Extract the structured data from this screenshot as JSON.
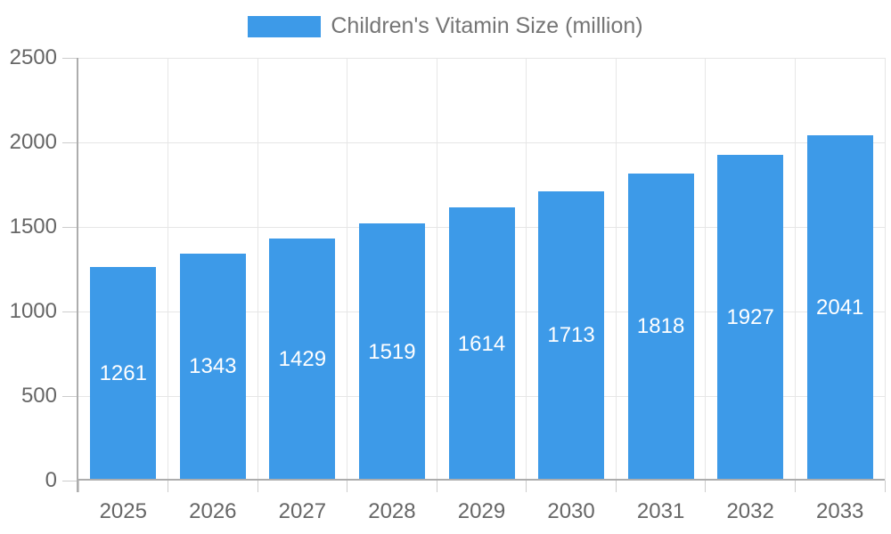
{
  "legend": {
    "label": "Children's Vitamin Size (million)"
  },
  "chart_data": {
    "type": "bar",
    "title": "Children's Vitamin Size (million)",
    "categories": [
      "2025",
      "2026",
      "2027",
      "2028",
      "2029",
      "2030",
      "2031",
      "2032",
      "2033"
    ],
    "values": [
      1261,
      1343,
      1429,
      1519,
      1614,
      1713,
      1818,
      1927,
      2041
    ],
    "series": [
      {
        "name": "Children's Vitamin Size (million)",
        "values": [
          1261,
          1343,
          1429,
          1519,
          1614,
          1713,
          1818,
          1927,
          2041
        ]
      }
    ],
    "xlabel": "",
    "ylabel": "",
    "ylim": [
      0,
      2500
    ],
    "yticks": [
      0,
      500,
      1000,
      1500,
      2000,
      2500
    ],
    "grid": true,
    "legend_position": "top-center",
    "colors": {
      "bar": "#3D9AE8",
      "value_label": "#ffffff",
      "axis_text": "#666666",
      "legend_text": "#757575",
      "gridline": "#e6e6e6",
      "axis_line": "#adadad",
      "tick": "#cccccc"
    }
  }
}
